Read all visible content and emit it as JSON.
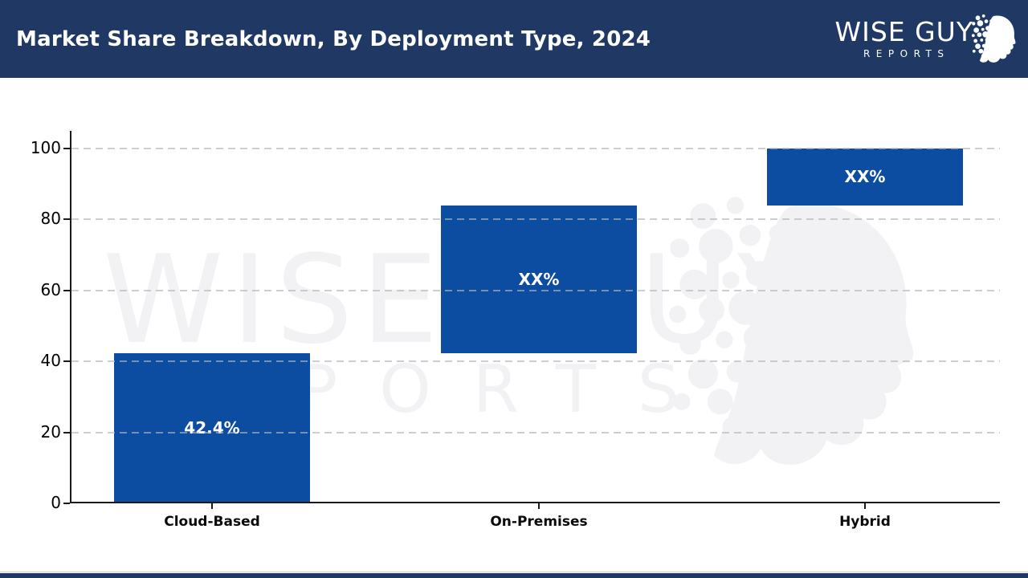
{
  "header": {
    "title": "Market Share Breakdown, By Deployment Type, 2024",
    "logo": {
      "line1": "WISE GUY",
      "line2": "REPORTS"
    }
  },
  "icons": {
    "brand": "wiseguy-head-dots-icon"
  },
  "watermark": {
    "line1": "WISE GUY",
    "line2": "REPORTS"
  },
  "colors": {
    "header_bg": "#203864",
    "bar": "#0C4DA2",
    "grid": "#b4b4b9",
    "axis": "#1a1a1a",
    "watermark": "#f2f2f5",
    "bar_label": "#ffffff"
  },
  "chart_data": {
    "type": "bar",
    "subtype": "floating-waterfall",
    "title": "Market Share Breakdown, By Deployment Type, 2024",
    "categories": [
      "Cloud-Based",
      "On-Premises",
      "Hybrid"
    ],
    "bars": [
      {
        "category": "Cloud-Based",
        "from": 0,
        "to": 42.4,
        "label": "42.4%"
      },
      {
        "category": "On-Premises",
        "from": 42.4,
        "to": 84,
        "label": "XX%"
      },
      {
        "category": "Hybrid",
        "from": 84,
        "to": 100,
        "label": "XX%"
      }
    ],
    "xlabel": "",
    "ylabel": "",
    "ylim": [
      0,
      100
    ],
    "yticks": [
      0,
      20,
      40,
      60,
      80,
      100
    ],
    "grid": "horizontal-dashed",
    "legend": "none"
  }
}
